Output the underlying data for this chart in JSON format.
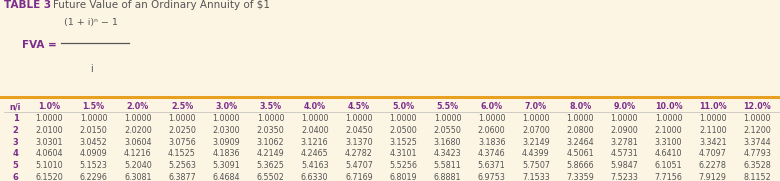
{
  "title_label": "TABLE 3",
  "title_text": "Future Value of an Ordinary Annuity of $1",
  "formula_fva": "FVA =",
  "numerator": "(1 + i)ⁿ − 1",
  "denominator": "i",
  "headers": [
    "n/i",
    "1.0%",
    "1.5%",
    "2.0%",
    "2.5%",
    "3.0%",
    "3.5%",
    "4.0%",
    "4.5%",
    "5.0%",
    "5.5%",
    "6.0%",
    "7.0%",
    "8.0%",
    "9.0%",
    "10.0%",
    "11.0%",
    "12.0%"
  ],
  "rows": [
    [
      1,
      "1.0000",
      "1.0000",
      "1.0000",
      "1.0000",
      "1.0000",
      "1.0000",
      "1.0000",
      "1.0000",
      "1.0000",
      "1.0000",
      "1.0000",
      "1.0000",
      "1.0000",
      "1.0000",
      "1.0000",
      "1.0000",
      "1.0000"
    ],
    [
      2,
      "2.0100",
      "2.0150",
      "2.0200",
      "2.0250",
      "2.0300",
      "2.0350",
      "2.0400",
      "2.0450",
      "2.0500",
      "2.0550",
      "2.0600",
      "2.0700",
      "2.0800",
      "2.0900",
      "2.1000",
      "2.1100",
      "2.1200"
    ],
    [
      3,
      "3.0301",
      "3.0452",
      "3.0604",
      "3.0756",
      "3.0909",
      "3.1062",
      "3.1216",
      "3.1370",
      "3.1525",
      "3.1680",
      "3.1836",
      "3.2149",
      "3.2464",
      "3.2781",
      "3.3100",
      "3.3421",
      "3.3744"
    ],
    [
      4,
      "4.0604",
      "4.0909",
      "4.1216",
      "4.1525",
      "4.1836",
      "4.2149",
      "4.2465",
      "4.2782",
      "4.3101",
      "4.3423",
      "4.3746",
      "4.4399",
      "4.5061",
      "4.5731",
      "4.6410",
      "4.7097",
      "4.7793"
    ],
    [
      5,
      "5.1010",
      "5.1523",
      "5.2040",
      "5.2563",
      "5.3091",
      "5.3625",
      "5.4163",
      "5.4707",
      "5.5256",
      "5.5811",
      "5.6371",
      "5.7507",
      "5.8666",
      "5.9847",
      "6.1051",
      "6.2278",
      "6.3528"
    ],
    [
      6,
      "6.1520",
      "6.2296",
      "6.3081",
      "6.3877",
      "6.4684",
      "6.5502",
      "6.6330",
      "6.7169",
      "6.8019",
      "6.8881",
      "6.9753",
      "7.1533",
      "7.3359",
      "7.5233",
      "7.7156",
      "7.9129",
      "8.1152"
    ]
  ],
  "bg_color": "#fdf5e4",
  "orange_line_color": "#e8a020",
  "title_label_color": "#7b2d8b",
  "title_text_color": "#555555",
  "header_text_color": "#7b2d8b",
  "row_text_color": "#555555",
  "row_n_color": "#7b2d8b",
  "formula_color": "#555555"
}
